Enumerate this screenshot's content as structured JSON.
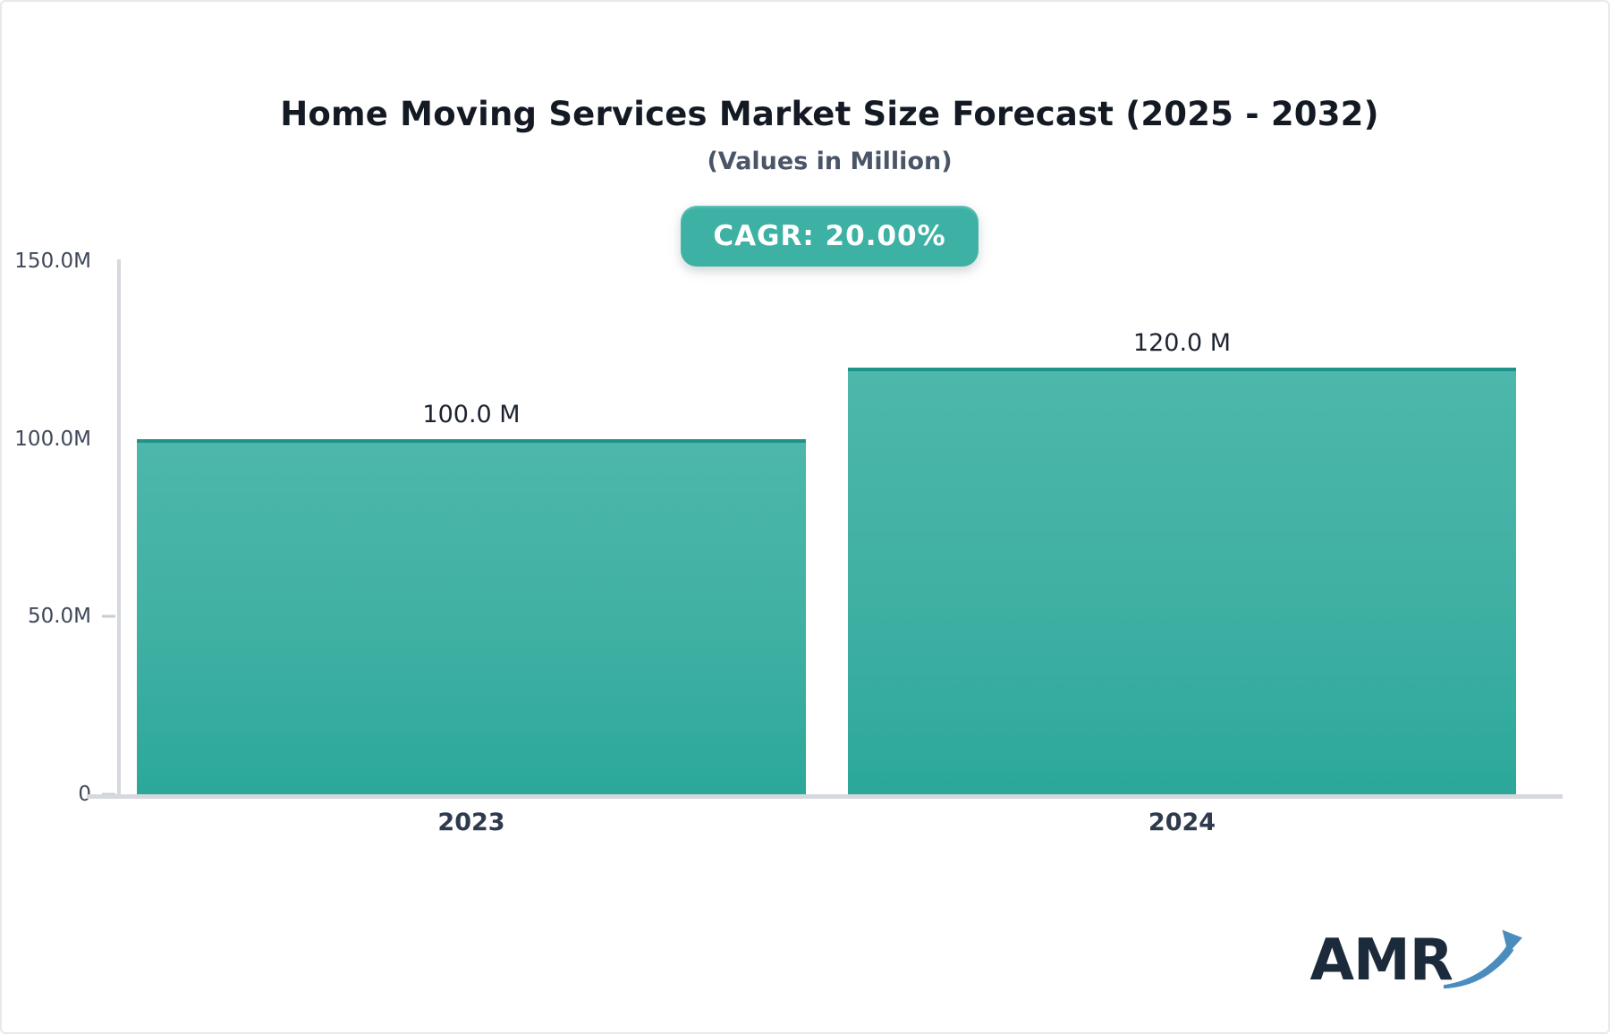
{
  "chart_data": {
    "type": "bar",
    "title": "Home Moving Services Market Size Forecast (2025 - 2032)",
    "subtitle": "(Values in Million)",
    "cagr_label": "CAGR: 20.00%",
    "cagr_percent": 20.0,
    "unit": "Million",
    "categories": [
      "2023",
      "2024"
    ],
    "values": [
      100.0,
      120.0
    ],
    "bar_labels": [
      "100.0 M",
      "120.0 M"
    ],
    "ylim": [
      0,
      150
    ],
    "y_ticks": [
      {
        "label": "150.0M",
        "value": 150,
        "dash": false
      },
      {
        "label": "100.0M",
        "value": 100,
        "dash": false
      },
      {
        "label": "50.0M",
        "value": 50,
        "dash": true
      },
      {
        "label": "0",
        "value": 0,
        "dash": true
      }
    ],
    "grid": "off",
    "legend": "none"
  },
  "colors": {
    "bar_gradient_top": "#4db7ab",
    "bar_gradient_bottom": "#2ba89a",
    "bar_top_edge": "#1e938a",
    "badge_bg": "#3db1a4",
    "axis_line": "#d5d8dd",
    "logo_arrow": "#4a8cbe",
    "logo_text": "#1c2b3b"
  },
  "logo": {
    "text": "AMR"
  }
}
